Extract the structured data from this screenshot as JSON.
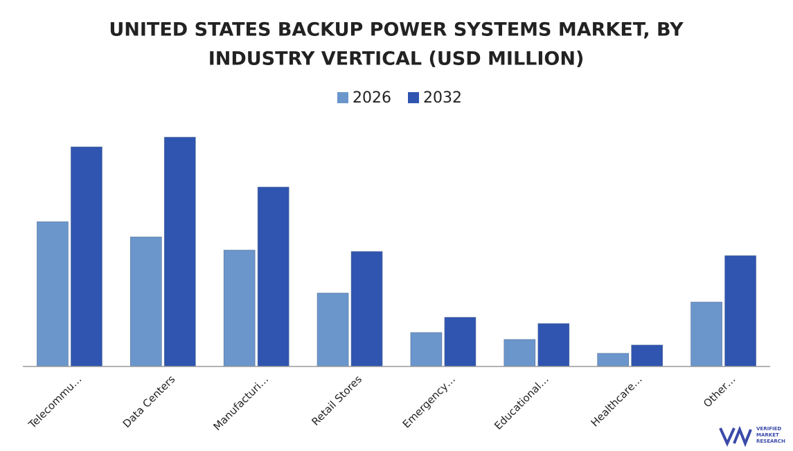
{
  "chart_data": {
    "type": "bar",
    "title_lines": [
      "UNITED STATES BACKUP POWER SYSTEMS MARKET, BY",
      "INDUSTRY VERTICAL (USD MILLION)"
    ],
    "categories": [
      "Telecommu…",
      "Data Centers",
      "Manufacturi…",
      "Retail Stores",
      "Emergency…",
      "Educational…",
      "Healthcare…",
      "Other…"
    ],
    "series": [
      {
        "name": "2026",
        "color": "#6a96cc",
        "values": [
          209,
          187,
          168,
          106,
          49,
          39,
          19,
          93
        ]
      },
      {
        "name": "2032",
        "color": "#2f55b0",
        "values": [
          317,
          331,
          259,
          166,
          71,
          62,
          31,
          160
        ]
      }
    ],
    "ylim": [
      0,
      340
    ],
    "legend": "top",
    "watermark": [
      "VERIFIED",
      "MARKET",
      "RESEARCH"
    ]
  }
}
